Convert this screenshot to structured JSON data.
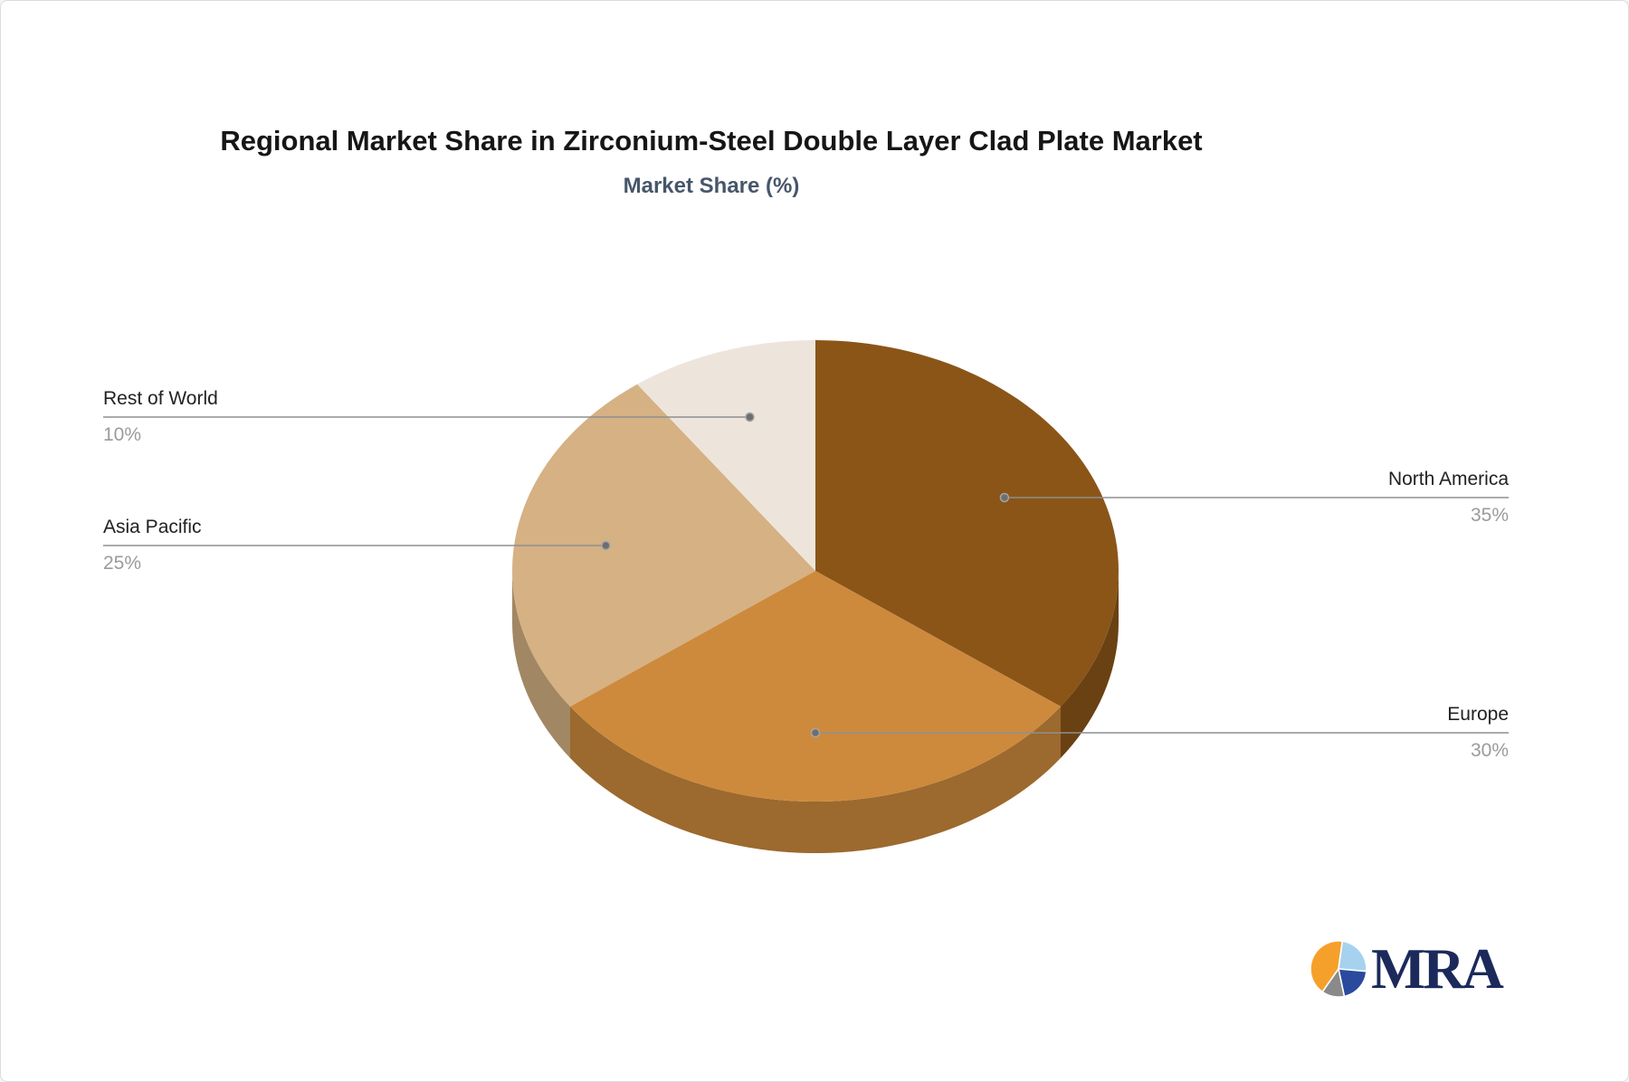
{
  "chart_data": {
    "type": "pie",
    "style": "3d",
    "title": "Regional Market Share in Zirconium-Steel Double Layer Clad Plate Market",
    "subtitle": "Market Share (%)",
    "unit": "%",
    "start_angle_deg": 0,
    "direction": "clockwise",
    "legend_position": "none",
    "slices": [
      {
        "label": "North America",
        "value": 35,
        "display": "35%",
        "color": "#8B5518",
        "label_side": "right"
      },
      {
        "label": "Europe",
        "value": 30,
        "display": "30%",
        "color": "#CD8A3D",
        "label_side": "right"
      },
      {
        "label": "Asia Pacific",
        "value": 25,
        "display": "25%",
        "color": "#D5B184",
        "label_side": "left"
      },
      {
        "label": "Rest of World",
        "value": 10,
        "display": "10%",
        "color": "#EDE5DB",
        "label_side": "left"
      }
    ],
    "title_color": "#161616",
    "subtitle_color": "#47566a",
    "label_text_color": "#222222",
    "percent_text_color": "#9b9b9b",
    "leader_line_color": "#8f8f8f",
    "background": "#ffffff"
  },
  "logo": {
    "text": "MRA",
    "text_color": "#1b2a5a",
    "icon_colors": {
      "orange": "#F5A02B",
      "light_blue": "#A6D2EF",
      "navy": "#2A4A9E",
      "gray": "#8A8A8A"
    }
  }
}
